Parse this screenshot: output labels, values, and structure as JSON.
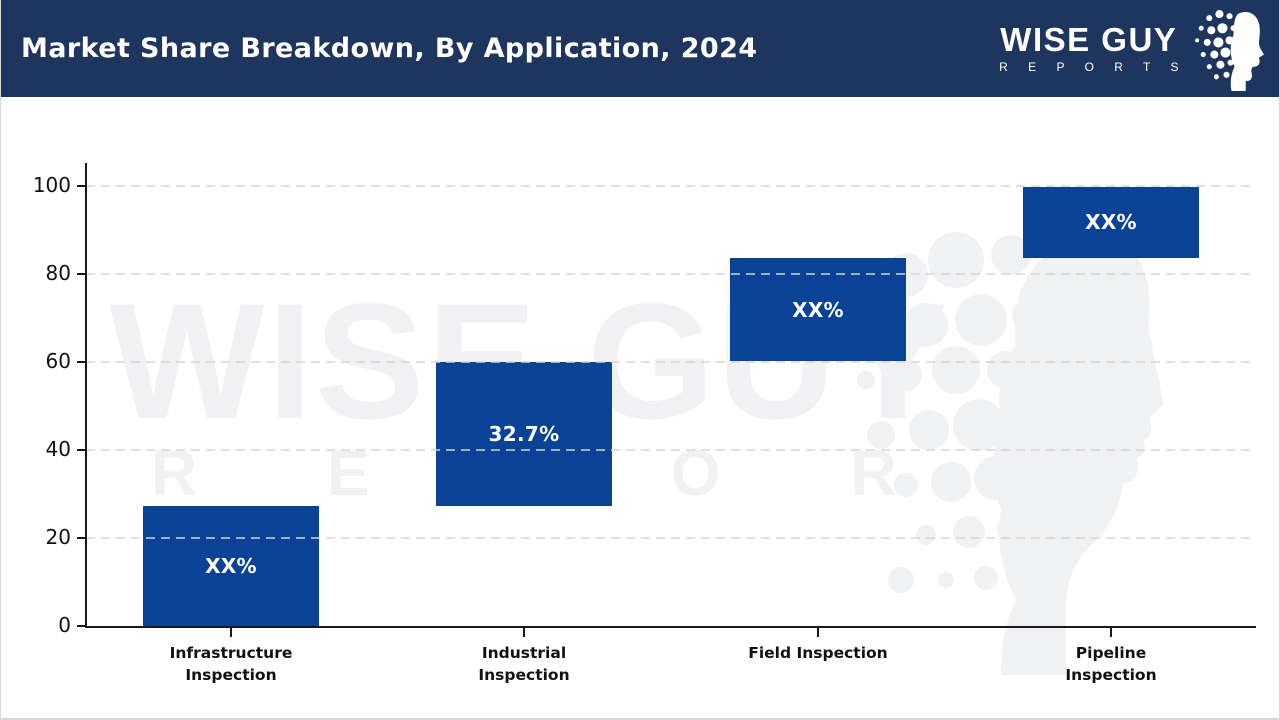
{
  "header": {
    "title": "Market Share Breakdown, By Application, 2024",
    "bg_color": "#1e355e",
    "logo": {
      "wordmark": "WISE GUY",
      "subtext": "R E P O R T S"
    }
  },
  "watermark": {
    "wordmark": "WISE GUY",
    "subtext": "R E P O R T S"
  },
  "chart_data": {
    "type": "bar",
    "subtype": "waterfall",
    "title": "Market Share Breakdown, By Application, 2024",
    "categories": [
      "Infrastructure\nInspection",
      "Industrial\nInspection",
      "Field Inspection",
      "Pipeline\nInspection"
    ],
    "segments": [
      {
        "category": "Infrastructure Inspection",
        "start": 0,
        "end": 27.2,
        "label": "XX%"
      },
      {
        "category": "Industrial Inspection",
        "start": 27.3,
        "end": 60.0,
        "label": "32.7%"
      },
      {
        "category": "Field Inspection",
        "start": 60.2,
        "end": 83.6,
        "label": "XX%"
      },
      {
        "category": "Pipeline Inspection",
        "start": 83.7,
        "end": 99.8,
        "label": "XX%"
      }
    ],
    "xlabel": "",
    "ylabel": "",
    "ylim": [
      0,
      100
    ],
    "yticks": [
      0,
      20,
      40,
      60,
      80,
      100
    ],
    "bar_color": "#0a4296",
    "bar_label_color": "#ffffff",
    "grid": {
      "axis": "y",
      "style": "dashed",
      "color": "#d9d9d9"
    },
    "legend": "none"
  }
}
